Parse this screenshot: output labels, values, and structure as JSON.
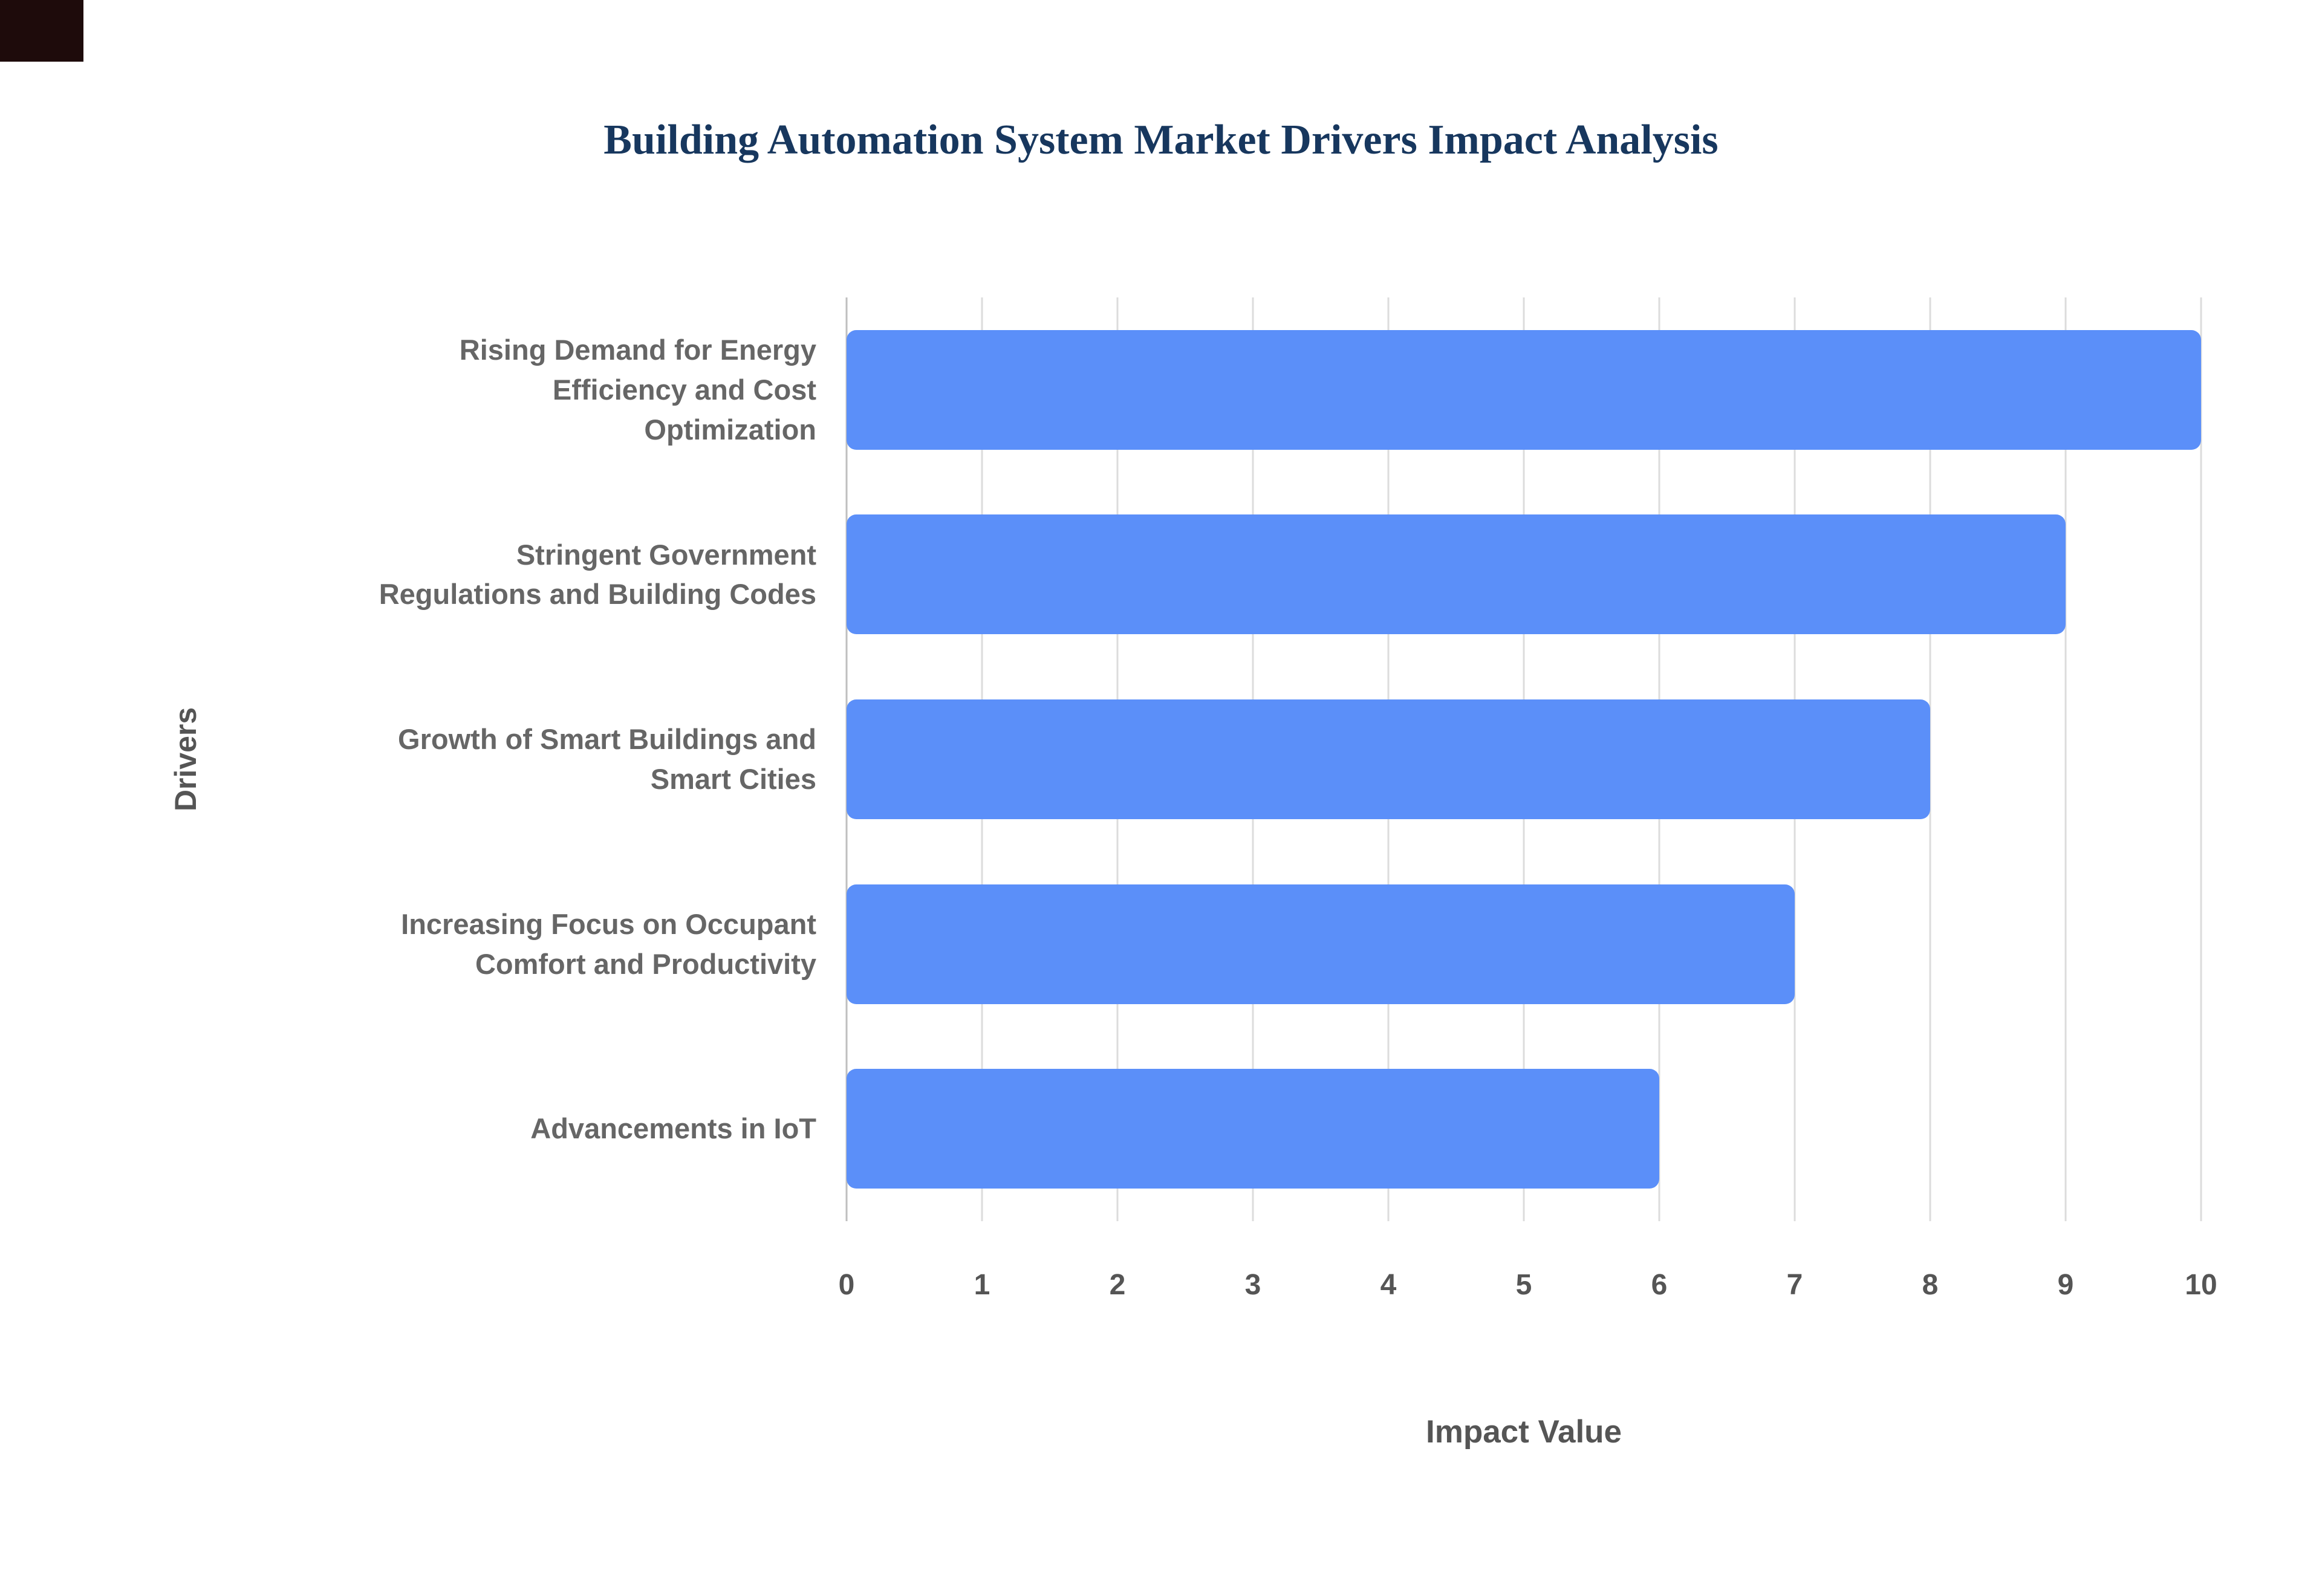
{
  "title": "Building Automation System Market Drivers Impact Analysis",
  "chart_data": {
    "type": "bar",
    "orientation": "horizontal",
    "title": "Building Automation System Market Drivers Impact Analysis",
    "categories": [
      "Rising Demand for Energy Efficiency and Cost Optimization",
      "Stringent Government Regulations and Building Codes",
      "Growth of Smart Buildings and Smart Cities",
      "Increasing Focus on Occupant Comfort and Productivity",
      "Advancements in IoT"
    ],
    "category_lines": [
      "Rising Demand for Energy\nEfficiency and Cost\nOptimization",
      "Stringent Government\nRegulations and Building Codes",
      "Growth of Smart Buildings and\nSmart Cities",
      "Increasing Focus on Occupant\nComfort and Productivity",
      "Advancements in IoT"
    ],
    "values": [
      10,
      9,
      8,
      7,
      6
    ],
    "xlabel": "Impact Value",
    "ylabel": "Drivers",
    "xlim": [
      0,
      10
    ],
    "xticks": [
      0,
      1,
      2,
      3,
      4,
      5,
      6,
      7,
      8,
      9,
      10
    ],
    "grid": true,
    "legend": false
  },
  "colors": {
    "bar": "#5B8FF9",
    "title": "#17375E",
    "text": "#666666",
    "tick": "#555555",
    "grid": "#DCDCDC",
    "axis": "#BFBFBF",
    "background": "#FFFFFF"
  }
}
